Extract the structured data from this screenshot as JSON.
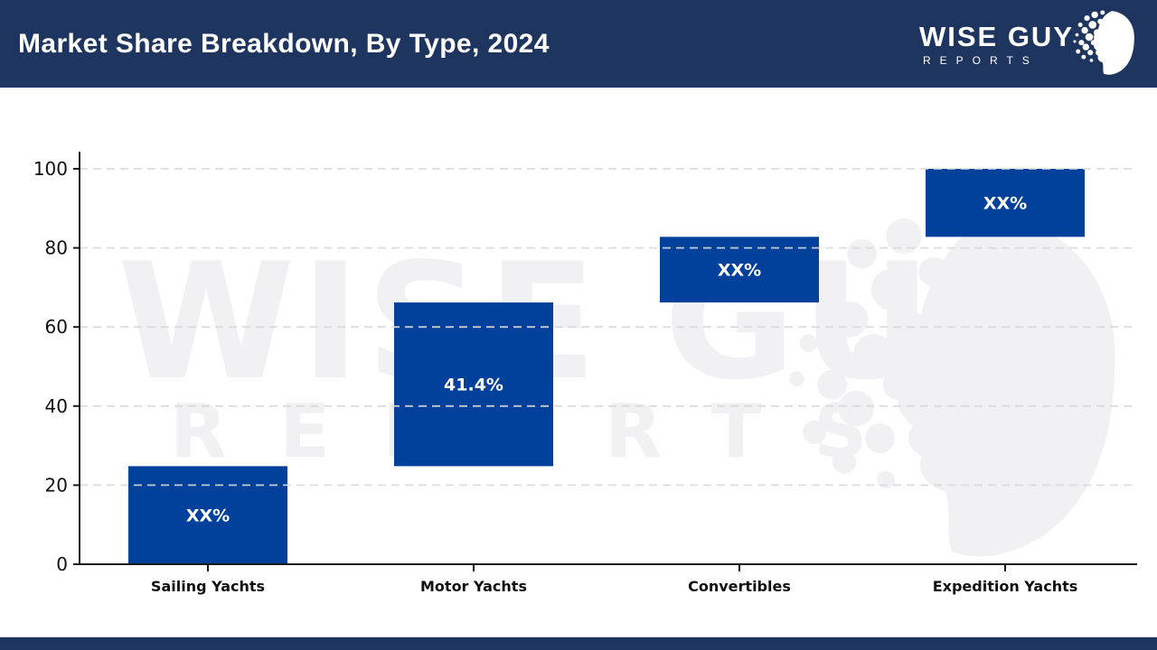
{
  "colors": {
    "header_bg": "#1E3560",
    "footer_bg": "#1E3560",
    "title_text": "#FFFFFF",
    "bar_blue": "#02419B",
    "bar_label_text": "#FFFFFF",
    "grid": "#D9D9D9",
    "axis": "#1A1A1A",
    "tick_text": "#111111",
    "watermark": "#F1F1F4"
  },
  "header": {
    "title": "Market Share Breakdown, By Type, 2024"
  },
  "logo": {
    "line1": "WISE GUY",
    "line2": "REPORTS"
  },
  "watermark": {
    "line1": "WISE GUY",
    "line2": "REPORTS"
  },
  "chart_data": {
    "type": "bar",
    "subtype": "floating-waterfall",
    "title": "Market Share Breakdown, By Type, 2024",
    "categories": [
      "Sailing Yachts",
      "Motor Yachts",
      "Convertibles",
      "Expedition Yachts"
    ],
    "segments": [
      {
        "category": "Sailing Yachts",
        "start": 0,
        "end": 24.8,
        "size": 24.8,
        "value_label": "XX%"
      },
      {
        "category": "Motor Yachts",
        "start": 24.8,
        "end": 66.2,
        "size": 41.4,
        "value_label": "41.4%"
      },
      {
        "category": "Convertibles",
        "start": 66.2,
        "end": 82.8,
        "size": 16.6,
        "value_label": "XX%"
      },
      {
        "category": "Expedition Yachts",
        "start": 82.8,
        "end": 100,
        "size": 17.2,
        "value_label": "XX%"
      }
    ],
    "xlabel": "",
    "ylabel": "",
    "yticks": [
      0,
      20,
      40,
      60,
      80,
      100
    ],
    "ylim": [
      0,
      105
    ],
    "grid": "horizontal-dashed",
    "gridline_style": "dashed, drawn above bars",
    "legend": "none"
  }
}
